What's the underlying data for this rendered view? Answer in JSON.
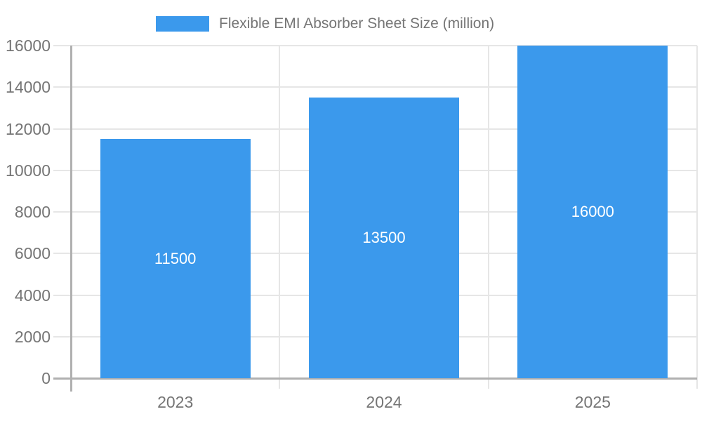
{
  "legend": {
    "label": "Flexible EMI Absorber Sheet Size (million)",
    "swatch_color": "#3B99EC"
  },
  "chart_data": {
    "type": "bar",
    "title": "Flexible EMI Absorber Sheet Size (million)",
    "categories": [
      "2023",
      "2024",
      "2025"
    ],
    "values": [
      11500,
      13500,
      16000
    ],
    "bar_labels": [
      "11500",
      "13500",
      "16000"
    ],
    "xlabel": "",
    "ylabel": "",
    "ylim": [
      0,
      16000
    ],
    "yticks": [
      0,
      2000,
      4000,
      6000,
      8000,
      10000,
      12000,
      14000,
      16000
    ],
    "grid": true,
    "legend_position": "top",
    "bar_color": "#3B99EC",
    "value_label_color": "#ffffff",
    "tick_label_color": "#757575",
    "grid_color": "#e6e6e6",
    "axis_color": "#b0b0b0",
    "background": "#ffffff"
  }
}
